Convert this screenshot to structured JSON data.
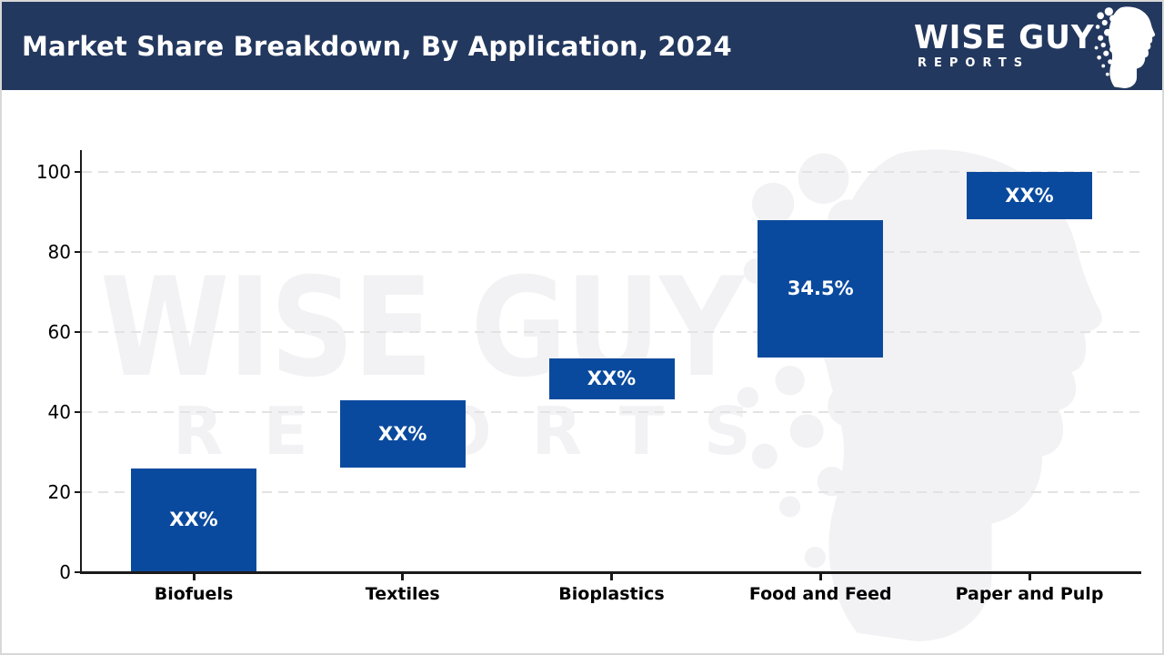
{
  "header": {
    "title": "Market Share Breakdown, By Application, 2024",
    "logo": {
      "line1": "WISE GUY",
      "line2": "REPORTS"
    }
  },
  "watermark": {
    "line1": "WISE GUY",
    "line2": "REPORTS"
  },
  "colors": {
    "header_bg": "#23385e",
    "bar": "#0a4a9e",
    "grid": "#e3e3e3",
    "axis": "#1a1a1a",
    "watermark": "#f2f2f4"
  },
  "chart_data": {
    "type": "bar",
    "subtype": "floating-waterfall",
    "title": "Market Share Breakdown, By Application, 2024",
    "categories": [
      "Biofuels",
      "Textiles",
      "Bioplastics",
      "Food and Feed",
      "Paper and Pulp"
    ],
    "bars": [
      {
        "category": "Biofuels",
        "start": 0,
        "end": 26,
        "value": 26,
        "label": "XX%"
      },
      {
        "category": "Textiles",
        "start": 26,
        "end": 43,
        "value": 17,
        "label": "XX%"
      },
      {
        "category": "Bioplastics",
        "start": 43,
        "end": 53.5,
        "value": 10.5,
        "label": "XX%"
      },
      {
        "category": "Food and Feed",
        "start": 53.5,
        "end": 88,
        "value": 34.5,
        "label": "34.5%"
      },
      {
        "category": "Paper and Pulp",
        "start": 88,
        "end": 100,
        "value": 12,
        "label": "XX%"
      }
    ],
    "ylim": [
      0,
      100
    ],
    "yticks": [
      0,
      20,
      40,
      60,
      80,
      100
    ],
    "xlabel": "",
    "ylabel": "",
    "grid": "horizontal-dashed",
    "legend": "none",
    "bar_color": "#0a4a9e"
  }
}
